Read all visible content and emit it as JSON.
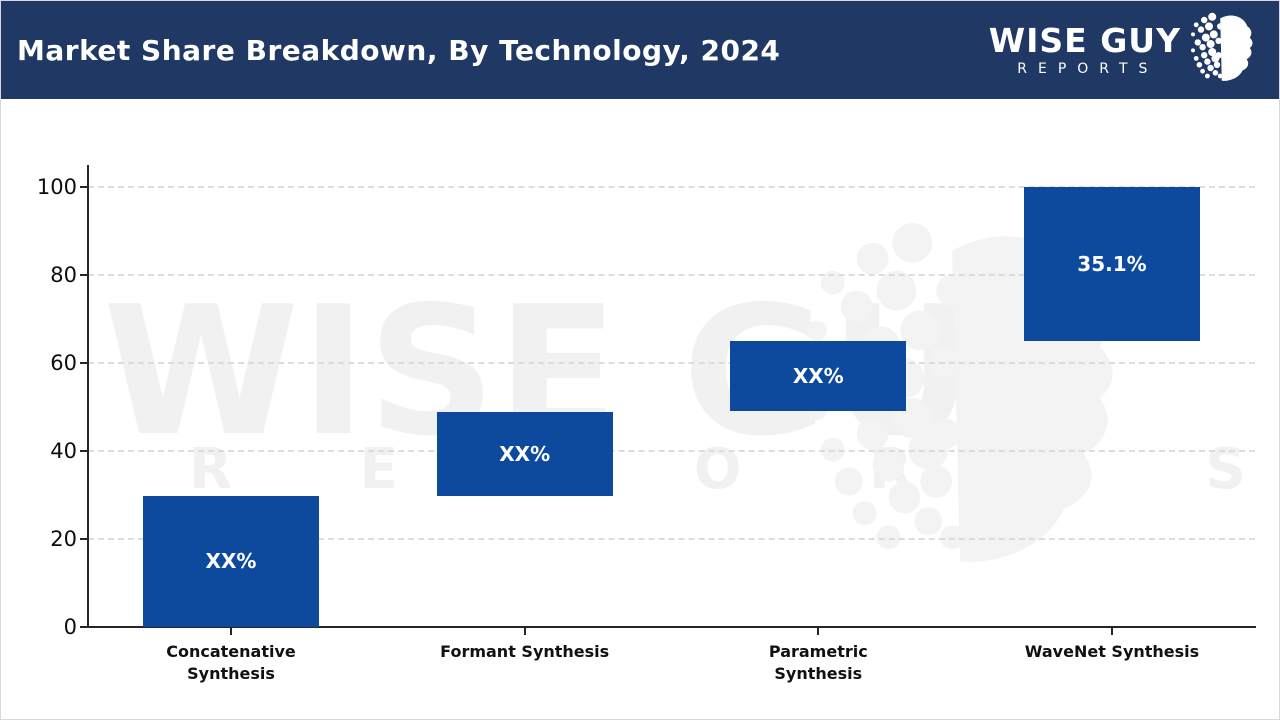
{
  "header": {
    "title": "Market Share Breakdown, By Technology, 2024",
    "logo": {
      "line1": "WISE GUY",
      "line2": "REPORTS"
    }
  },
  "watermark": {
    "line1": "WISE GUY",
    "line2": "R E P O R T S"
  },
  "icons": {
    "logo_face": "dotted-head-profile-icon",
    "watermark_face": "dotted-head-profile-icon"
  },
  "colors": {
    "header_bg": "#1f3864",
    "bar": "#0d4a9e",
    "grid": "#dcdcdc",
    "axis": "#262626",
    "watermark": "#f1f1f1",
    "bar_value_text": "#ffffff",
    "title_text": "#ffffff"
  },
  "chart_data": {
    "type": "bar",
    "subtype": "waterfall",
    "title": "Market Share Breakdown, By Technology, 2024",
    "categories": [
      "Concatenative\nSynthesis",
      "Formant Synthesis",
      "Parametric\nSynthesis",
      "WaveNet Synthesis"
    ],
    "bars": [
      {
        "category": "Concatenative Synthesis",
        "start": 0,
        "end": 29.8,
        "label": "XX%"
      },
      {
        "category": "Formant Synthesis",
        "start": 29.8,
        "end": 48.9,
        "label": "XX%"
      },
      {
        "category": "Parametric Synthesis",
        "start": 49.1,
        "end": 64.9,
        "label": "XX%"
      },
      {
        "category": "WaveNet Synthesis",
        "start": 64.9,
        "end": 100,
        "label": "35.1%"
      }
    ],
    "ylim": [
      0,
      100
    ],
    "yticks": [
      0,
      20,
      40,
      60,
      80,
      100
    ],
    "grid": "horizontal-dashed",
    "legend": "none"
  }
}
